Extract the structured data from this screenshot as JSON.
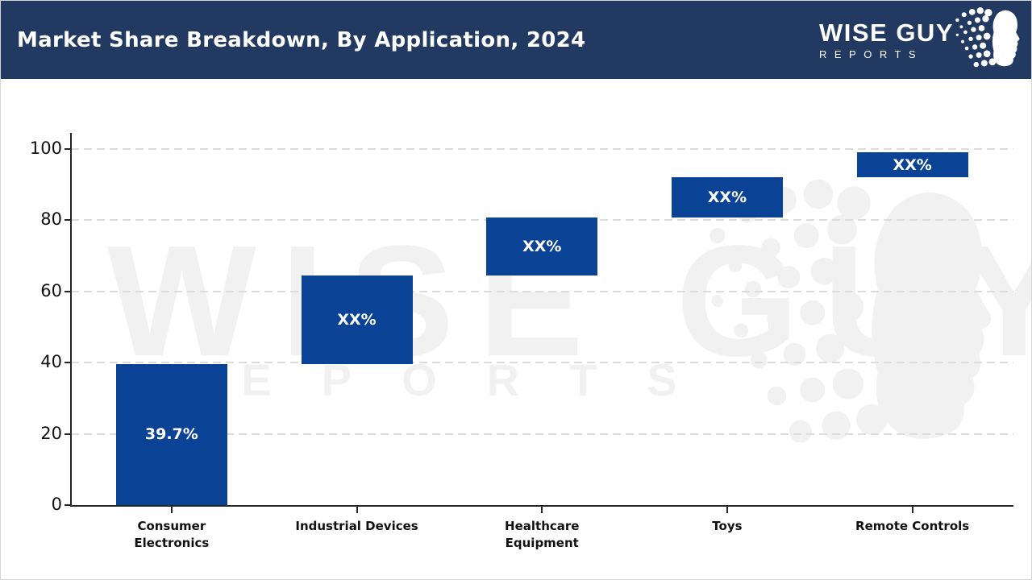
{
  "header": {
    "title": "Market Share Breakdown, By Application, 2024",
    "brand": {
      "name": "WISE GUY",
      "subtitle": "REPORTS"
    },
    "bg_color": "#223962"
  },
  "watermark": {
    "line1": "WISE GUY",
    "line2": "REPORTS"
  },
  "chart_data": {
    "type": "bar",
    "subtype": "waterfall",
    "title": "Market Share Breakdown, By Application, 2024",
    "xlabel": "",
    "ylabel": "",
    "categories": [
      "Consumer Electronics",
      "Industrial Devices",
      "Healthcare Equipment",
      "Toys",
      "Remote Controls"
    ],
    "segments": [
      {
        "category": "Consumer Electronics",
        "start": 0,
        "end": 39.7,
        "value": 39.7,
        "label": "39.7%"
      },
      {
        "category": "Industrial Devices",
        "start": 39.7,
        "end": 64.5,
        "value": 24.8,
        "label": "XX%"
      },
      {
        "category": "Healthcare Equipment",
        "start": 64.5,
        "end": 80.8,
        "value": 16.3,
        "label": "XX%"
      },
      {
        "category": "Toys",
        "start": 80.8,
        "end": 92.0,
        "value": 11.2,
        "label": "XX%"
      },
      {
        "category": "Remote Controls",
        "start": 92.0,
        "end": 99.0,
        "value": 7.0,
        "label": "XX%"
      }
    ],
    "yticks": [
      0,
      20,
      40,
      60,
      80,
      100
    ],
    "ylim": [
      0,
      104.5
    ],
    "bar_color": "#0a4296",
    "bar_label_color": "#ffffff",
    "grid": {
      "axis": "y",
      "style": "dashed",
      "color": "#dcdcdc"
    },
    "legend": "none"
  }
}
